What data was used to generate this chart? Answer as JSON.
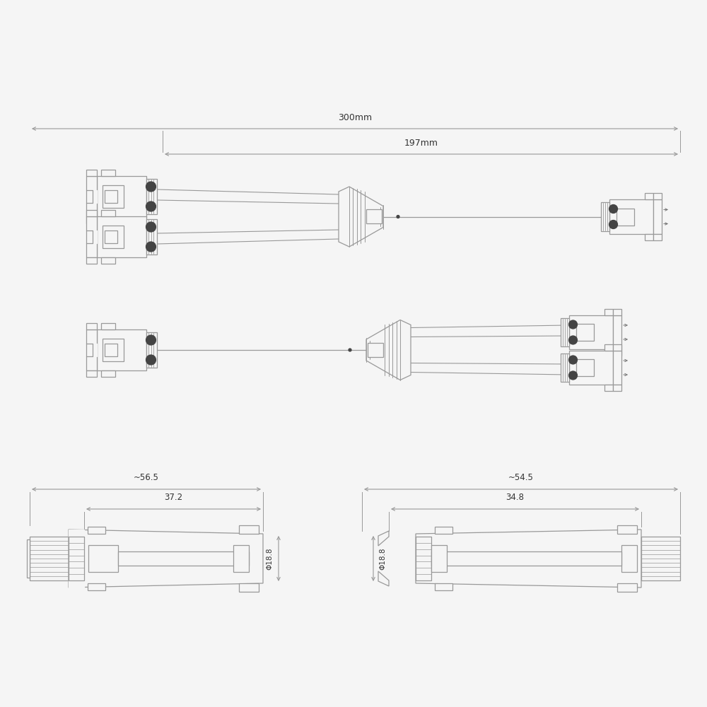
{
  "bg_color": "#f5f5f5",
  "line_color": "#999999",
  "dark_color": "#444444",
  "med_color": "#777777",
  "text_color": "#333333",
  "fig_size": [
    10,
    10
  ],
  "dpi": 100,
  "dim_300mm": "300mm",
  "dim_197mm": "197mm",
  "dim_56p5": "~56.5",
  "dim_37p2": "37.2",
  "dim_18p8a": "Φ18.8",
  "dim_18p8b": "Φ18.8",
  "dim_54p5": "~54.5",
  "dim_34p8": "34.8"
}
